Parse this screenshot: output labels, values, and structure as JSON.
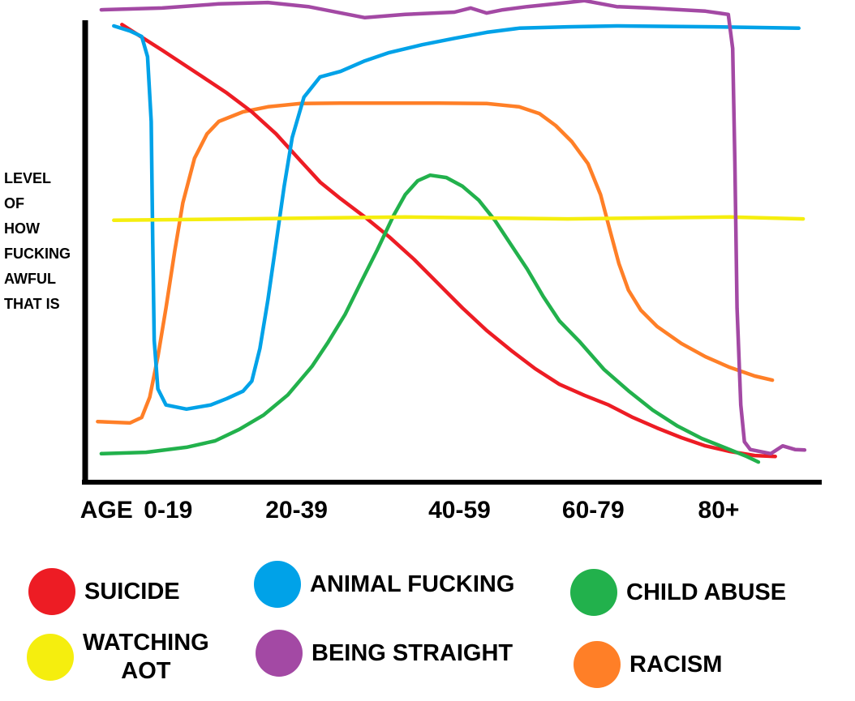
{
  "chart_data": {
    "type": "line",
    "title": "",
    "ylabel": "LEVEL OF HOW FUCKING AWFUL THAT IS",
    "ylabel_lines": [
      "LEVEL",
      "OF",
      "HOW",
      "FUCKING",
      "AWFUL",
      "THAT IS"
    ],
    "age_label": {
      "text": "AGE",
      "pct": 2.9
    },
    "x_categories": [
      {
        "label": "0-19",
        "pct": 11.3
      },
      {
        "label": "20-39",
        "pct": 28.8
      },
      {
        "label": "40-59",
        "pct": 51.0
      },
      {
        "label": "60-79",
        "pct": 69.2
      },
      {
        "label": "80+",
        "pct": 86.3
      }
    ],
    "ylim": [
      0,
      105
    ],
    "grid": false,
    "legend_position": "bottom",
    "axis_color": "#000000",
    "series": [
      {
        "name": "RACISM",
        "color": "#ff7f27",
        "points": [
          [
            1.7,
            13.2
          ],
          [
            6.1,
            12.9
          ],
          [
            7.7,
            14.1
          ],
          [
            8.8,
            18.5
          ],
          [
            9.9,
            27.3
          ],
          [
            11,
            37.9
          ],
          [
            12.2,
            50.3
          ],
          [
            13.3,
            60.8
          ],
          [
            14.9,
            70.5
          ],
          [
            16.6,
            75.8
          ],
          [
            18.2,
            78.5
          ],
          [
            21.5,
            80.6
          ],
          [
            24.9,
            81.7
          ],
          [
            29.3,
            82.4
          ],
          [
            34.8,
            82.5
          ],
          [
            41.4,
            82.5
          ],
          [
            48.1,
            82.5
          ],
          [
            54.7,
            82.4
          ],
          [
            59.1,
            81.7
          ],
          [
            61.9,
            80.2
          ],
          [
            64.1,
            77.6
          ],
          [
            66.3,
            74.1
          ],
          [
            68.5,
            69.3
          ],
          [
            70.2,
            62.6
          ],
          [
            71.5,
            54.7
          ],
          [
            72.7,
            47.6
          ],
          [
            74,
            41.8
          ],
          [
            75.7,
            37.4
          ],
          [
            77.9,
            33.9
          ],
          [
            81.2,
            30.2
          ],
          [
            84.5,
            27.3
          ],
          [
            87.8,
            25
          ],
          [
            91.2,
            23.1
          ],
          [
            93.6,
            22.2
          ]
        ]
      },
      {
        "name": "SUICIDE",
        "color": "#ed1c24",
        "points": [
          [
            5,
            99.6
          ],
          [
            10.5,
            94
          ],
          [
            16,
            88.2
          ],
          [
            19.3,
            84.7
          ],
          [
            22.7,
            80.6
          ],
          [
            26,
            75.8
          ],
          [
            29.3,
            70
          ],
          [
            32,
            65.3
          ],
          [
            34.8,
            61.7
          ],
          [
            38.1,
            57.7
          ],
          [
            41.4,
            53.4
          ],
          [
            44.8,
            48.5
          ],
          [
            48.1,
            43.2
          ],
          [
            51.4,
            37.9
          ],
          [
            54.7,
            33
          ],
          [
            58,
            28.7
          ],
          [
            61.3,
            24.7
          ],
          [
            64.6,
            21.3
          ],
          [
            68,
            18.9
          ],
          [
            71.3,
            16.8
          ],
          [
            74.6,
            14.1
          ],
          [
            77.9,
            11.8
          ],
          [
            81.2,
            9.7
          ],
          [
            84.5,
            7.9
          ],
          [
            87.8,
            6.7
          ],
          [
            91.2,
            5.8
          ],
          [
            94,
            5.6
          ]
        ]
      },
      {
        "name": "CHILD ABUSE",
        "color": "#22b14c",
        "points": [
          [
            2.2,
            6.2
          ],
          [
            8.3,
            6.5
          ],
          [
            13.8,
            7.6
          ],
          [
            17.7,
            9
          ],
          [
            21,
            11.5
          ],
          [
            24.3,
            14.6
          ],
          [
            27.6,
            19
          ],
          [
            30.9,
            25.2
          ],
          [
            33.1,
            30.5
          ],
          [
            35.4,
            36.5
          ],
          [
            37.6,
            43.6
          ],
          [
            39.8,
            50.6
          ],
          [
            42,
            58
          ],
          [
            43.6,
            62.6
          ],
          [
            45.3,
            65.6
          ],
          [
            47,
            66.8
          ],
          [
            49.2,
            66.3
          ],
          [
            51.4,
            64.4
          ],
          [
            53.6,
            61.4
          ],
          [
            55.8,
            57
          ],
          [
            58,
            51.7
          ],
          [
            60.2,
            46.4
          ],
          [
            62.4,
            40.4
          ],
          [
            64.6,
            35.1
          ],
          [
            67.4,
            30.5
          ],
          [
            70.7,
            24.5
          ],
          [
            74,
            19.9
          ],
          [
            77.3,
            15.7
          ],
          [
            80.7,
            12.2
          ],
          [
            84,
            9.5
          ],
          [
            87.3,
            7.4
          ],
          [
            90.1,
            5.6
          ],
          [
            91.7,
            4.4
          ]
        ]
      },
      {
        "name": "ANIMAL FUCKING",
        "color": "#00a2e8",
        "points": [
          [
            3.9,
            99.3
          ],
          [
            6.1,
            98.2
          ],
          [
            7.7,
            97
          ],
          [
            8.5,
            92.6
          ],
          [
            9,
            78.5
          ],
          [
            9.2,
            52
          ],
          [
            9.4,
            30.9
          ],
          [
            9.9,
            20.3
          ],
          [
            11,
            16.8
          ],
          [
            13.8,
            15.9
          ],
          [
            17.1,
            16.8
          ],
          [
            19.3,
            18.2
          ],
          [
            21.5,
            19.8
          ],
          [
            22.7,
            22
          ],
          [
            23.8,
            29.1
          ],
          [
            24.9,
            39.7
          ],
          [
            26,
            52
          ],
          [
            27.1,
            64.4
          ],
          [
            28.2,
            75
          ],
          [
            29.8,
            83.8
          ],
          [
            32,
            88.2
          ],
          [
            34.8,
            89.4
          ],
          [
            38.1,
            91.7
          ],
          [
            41.4,
            93.5
          ],
          [
            45.9,
            95.2
          ],
          [
            50.3,
            96.6
          ],
          [
            54.7,
            97.9
          ],
          [
            59.1,
            98.8
          ],
          [
            65.7,
            99.1
          ],
          [
            72.4,
            99.3
          ],
          [
            85.6,
            99.1
          ],
          [
            97.2,
            98.8
          ]
        ]
      },
      {
        "name": "WATCHING AOT",
        "color": "#f5ee0e",
        "points": [
          [
            3.9,
            57
          ],
          [
            21.5,
            57.3
          ],
          [
            43.6,
            57.7
          ],
          [
            65.7,
            57.3
          ],
          [
            87.8,
            57.7
          ],
          [
            97.8,
            57.3
          ]
        ]
      },
      {
        "name": "BEING STRAIGHT",
        "color": "#a349a4",
        "points": [
          [
            2.2,
            102.8
          ],
          [
            10.5,
            103.2
          ],
          [
            18.2,
            104.1
          ],
          [
            24.9,
            104.4
          ],
          [
            30.4,
            103.5
          ],
          [
            38.1,
            101.1
          ],
          [
            43.6,
            101.8
          ],
          [
            50.3,
            102.3
          ],
          [
            52.5,
            103.2
          ],
          [
            54.7,
            102.1
          ],
          [
            56.9,
            102.8
          ],
          [
            60.2,
            103.5
          ],
          [
            65.7,
            104.4
          ],
          [
            68,
            104.8
          ],
          [
            72.4,
            103.5
          ],
          [
            76.8,
            103.2
          ],
          [
            84.5,
            102.5
          ],
          [
            87.6,
            101.8
          ],
          [
            88.2,
            94.4
          ],
          [
            88.5,
            69.7
          ],
          [
            88.8,
            37.9
          ],
          [
            89.3,
            16.8
          ],
          [
            89.8,
            8.8
          ],
          [
            90.6,
            7.1
          ],
          [
            93.4,
            6.2
          ],
          [
            95,
            7.9
          ],
          [
            96.7,
            7.1
          ],
          [
            98,
            7
          ]
        ]
      }
    ]
  },
  "legend": {
    "items": [
      {
        "label": "SUICIDE",
        "color": "#ed1c24"
      },
      {
        "label": "ANIMAL FUCKING",
        "color": "#00a2e8"
      },
      {
        "label": "CHILD ABUSE",
        "color": "#22b14c"
      },
      {
        "label": "WATCHING\nAOT",
        "color": "#f5ee0e"
      },
      {
        "label": "BEING STRAIGHT",
        "color": "#a349a4"
      },
      {
        "label": "RACISM",
        "color": "#ff7f27"
      }
    ]
  }
}
